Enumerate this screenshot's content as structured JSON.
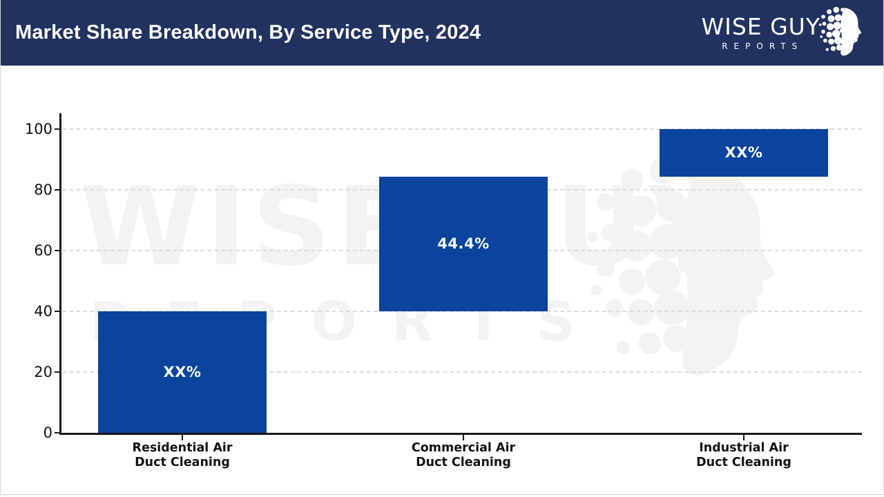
{
  "header": {
    "title": "Market Share Breakdown, By Service Type, 2024",
    "logo": {
      "line1": "WISE GUY",
      "line2": "REPORTS"
    }
  },
  "watermark": {
    "line1": "WISE GUY",
    "line2": "REPORTS"
  },
  "chart_data": {
    "type": "bar",
    "subtype": "waterfall",
    "title": "Market Share Breakdown, By Service Type, 2024",
    "categories": [
      "Residential Air\nDuct Cleaning",
      "Commercial Air\nDuct Cleaning",
      "Industrial Air\nDuct Cleaning"
    ],
    "bars": [
      {
        "category": "Residential Air Duct Cleaning",
        "label": "XX%",
        "start": 0,
        "end": 40
      },
      {
        "category": "Commercial Air Duct Cleaning",
        "label": "44.4%",
        "start": 40,
        "end": 84.4
      },
      {
        "category": "Industrial Air Duct Cleaning",
        "label": "XX%",
        "start": 84.4,
        "end": 100
      }
    ],
    "ylim": [
      0,
      100
    ],
    "yticks": [
      0,
      20,
      40,
      60,
      80,
      100
    ],
    "grid": "horizontal-dashed",
    "legend": null,
    "xlabel": "",
    "ylabel": "",
    "bar_color": "#0a449c"
  },
  "colors": {
    "header_bg": "#21325f",
    "bar": "#0a449c",
    "bar_label": "#ffffff",
    "axis": "#1a1a1a",
    "gridline": "#dcdcdc",
    "watermark": "#f3f3f3"
  }
}
